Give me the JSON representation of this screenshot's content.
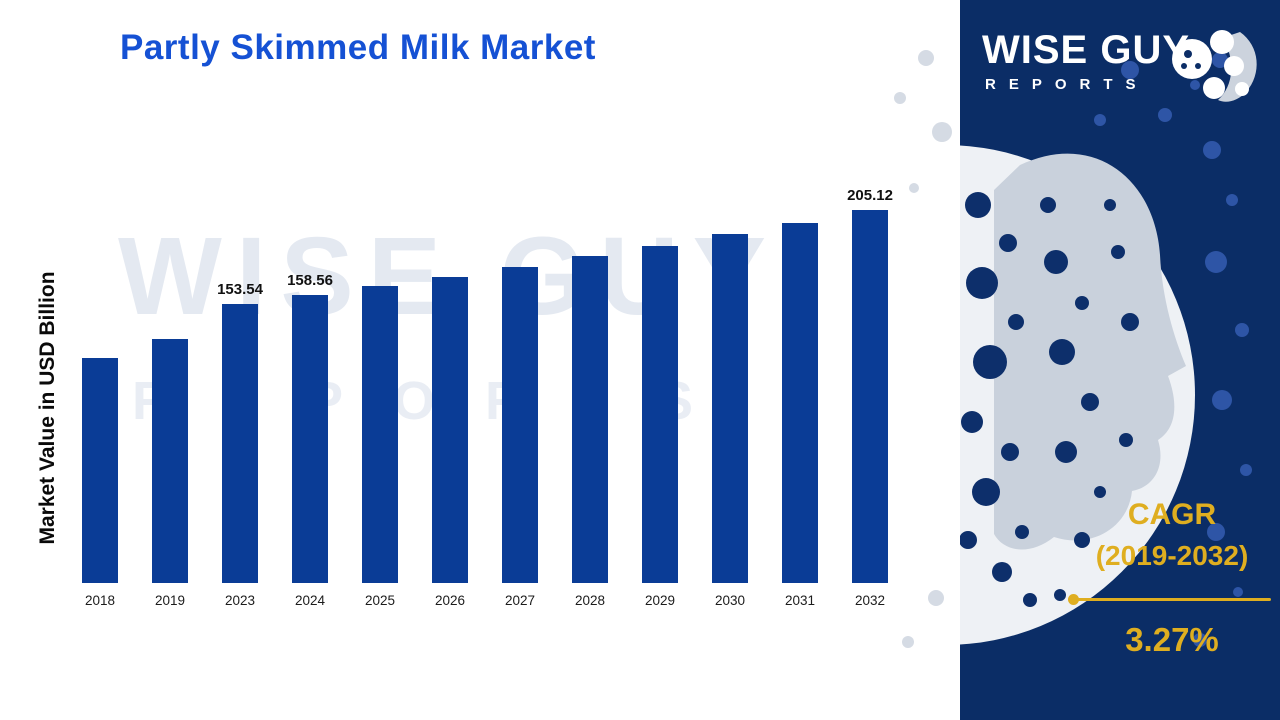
{
  "title": "Partly Skimmed Milk Market",
  "brand": {
    "name": "WISE GUY",
    "subtitle": "REPORTS"
  },
  "watermark": {
    "line1": "WISE GUY",
    "line2": "REPORTS"
  },
  "cagr": {
    "label": "CAGR",
    "range": "(2019-2032)",
    "value": "3.27%"
  },
  "chart_data": {
    "type": "bar",
    "title": "Partly Skimmed Milk Market",
    "xlabel": "",
    "ylabel": "Market Value in USD Billion",
    "categories": [
      "2018",
      "2019",
      "2023",
      "2024",
      "2025",
      "2026",
      "2027",
      "2028",
      "2029",
      "2030",
      "2031",
      "2032"
    ],
    "values": [
      124,
      134,
      153.54,
      158.56,
      163.5,
      168.5,
      174,
      180,
      185.5,
      192,
      198,
      205.12
    ],
    "data_labels": [
      null,
      null,
      "153.54",
      "158.56",
      null,
      null,
      null,
      null,
      null,
      null,
      null,
      "205.12"
    ],
    "ylim": [
      0,
      220
    ],
    "grid": false,
    "legend": false,
    "bar_color": "#0a3c96",
    "accent_gold": "#dfae20",
    "panel_navy": "#0b2d66",
    "title_blue": "#1551d4"
  }
}
